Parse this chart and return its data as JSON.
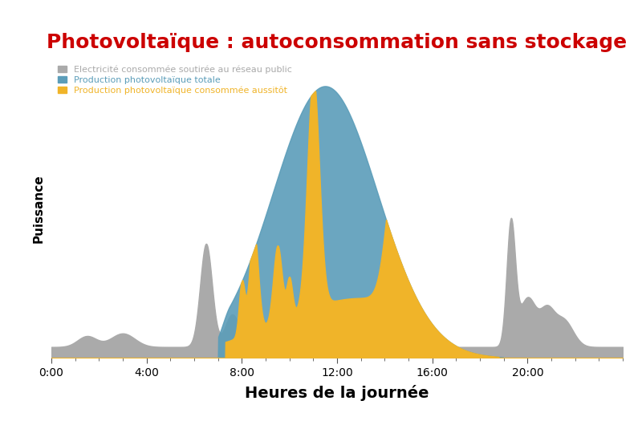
{
  "title": "Photovoltaïque : autoconsommation sans stockage",
  "xlabel": "Heures de la journée",
  "ylabel": "Puissance",
  "title_color": "#cc0000",
  "title_fontsize": 18,
  "xlabel_fontsize": 14,
  "ylabel_fontsize": 11,
  "legend_labels": [
    "Electricité consommée soutirée au réseau public",
    "Production photovoltaïque totale",
    "Production photovoltaïque consommée aussitôt"
  ],
  "legend_colors": [
    "#aaaaaa",
    "#5b9db9",
    "#f0b429"
  ],
  "grid_color": "#cccccc",
  "bg_color": "#ffffff",
  "xtick_labels": [
    "0:00",
    "4:00",
    "8:00",
    "12:00",
    "16:00",
    "20:00"
  ],
  "xtick_positions": [
    0,
    4,
    8,
    12,
    16,
    20
  ],
  "color_gray": "#aaaaaa",
  "color_blue": "#5b9db9",
  "color_yellow": "#f0b429"
}
